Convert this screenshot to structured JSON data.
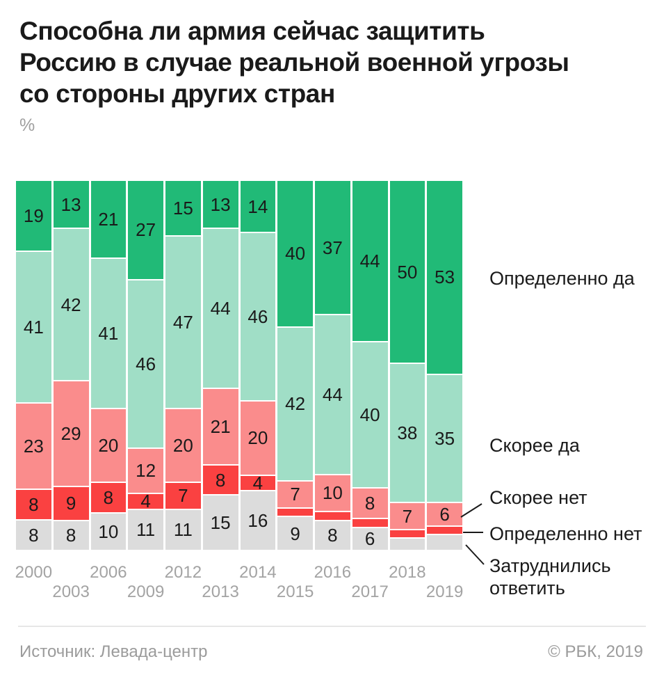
{
  "header": {
    "title_lines": [
      "Способна ли армия сейчас защитить",
      "Россию в случае реальной военной угрозы",
      "со стороны других стран"
    ],
    "unit": "%"
  },
  "legend": {
    "items": [
      {
        "label": "Определенно да"
      },
      {
        "label": "Скорее да"
      },
      {
        "label": "Скорее нет"
      },
      {
        "label": "Определенно нет"
      },
      {
        "label": "Затруднились ответить"
      }
    ]
  },
  "footer": {
    "source": "Источник: Левада-центр",
    "copyright": "© РБК, 2019"
  },
  "colors": {
    "definitely_yes": "#21BA77",
    "rather_yes": "#A0DEC6",
    "rather_no": "#FA8C8C",
    "definitely_no": "#FA4141",
    "hard_to_answer": "#DCDCDC",
    "text_dark": "#1a1a1a",
    "text_gray": "#9f9f9f"
  },
  "chart_data": {
    "type": "bar",
    "subtype": "stacked-100-percent",
    "title": "Способна ли армия сейчас защитить Россию в случае реальной военной угрозы со стороны других стран",
    "xlabel": "",
    "ylabel": "%",
    "ylim": [
      0,
      100
    ],
    "grid": false,
    "legend_position": "right",
    "categories": [
      "2000",
      "2003",
      "2006",
      "2009",
      "2012",
      "2013",
      "2014",
      "2015",
      "2016",
      "2017",
      "2018",
      "2019"
    ],
    "series": [
      {
        "name": "Определенно да",
        "color": "#21BA77",
        "values": [
          19,
          13,
          21,
          27,
          15,
          13,
          14,
          40,
          37,
          44,
          50,
          53
        ],
        "labels": [
          "19",
          "13",
          "21",
          "27",
          "15",
          "13",
          "14",
          "40",
          "37",
          "44",
          "50",
          "53"
        ]
      },
      {
        "name": "Скорее да",
        "color": "#A0DEC6",
        "values": [
          41,
          42,
          41,
          46,
          47,
          44,
          46,
          42,
          44,
          40,
          38,
          35
        ],
        "labels": [
          "41",
          "42",
          "41",
          "46",
          "47",
          "44",
          "46",
          "42",
          "44",
          "40",
          "38",
          "35"
        ]
      },
      {
        "name": "Скорее нет",
        "color": "#FA8C8C",
        "values": [
          23,
          29,
          20,
          12,
          20,
          21,
          20,
          7,
          10,
          8,
          7,
          6
        ],
        "labels": [
          "23",
          "29",
          "20",
          "12",
          "20",
          "21",
          "20",
          "7",
          "10",
          "8",
          "7",
          "6"
        ]
      },
      {
        "name": "Определенно нет",
        "color": "#FA4141",
        "values": [
          8,
          9,
          8,
          4,
          7,
          8,
          4,
          2,
          2,
          2,
          2,
          2
        ],
        "labels": [
          "8",
          "9",
          "8",
          "4",
          "7",
          "8",
          "4",
          null,
          null,
          null,
          null,
          null
        ]
      },
      {
        "name": "Затруднились ответить",
        "color": "#DCDCDC",
        "values": [
          8,
          8,
          10,
          11,
          11,
          15,
          16,
          9,
          8,
          6,
          3,
          4
        ],
        "labels": [
          "8",
          "8",
          "10",
          "11",
          "11",
          "15",
          "16",
          "9",
          "8",
          "6",
          null,
          null
        ]
      }
    ]
  }
}
